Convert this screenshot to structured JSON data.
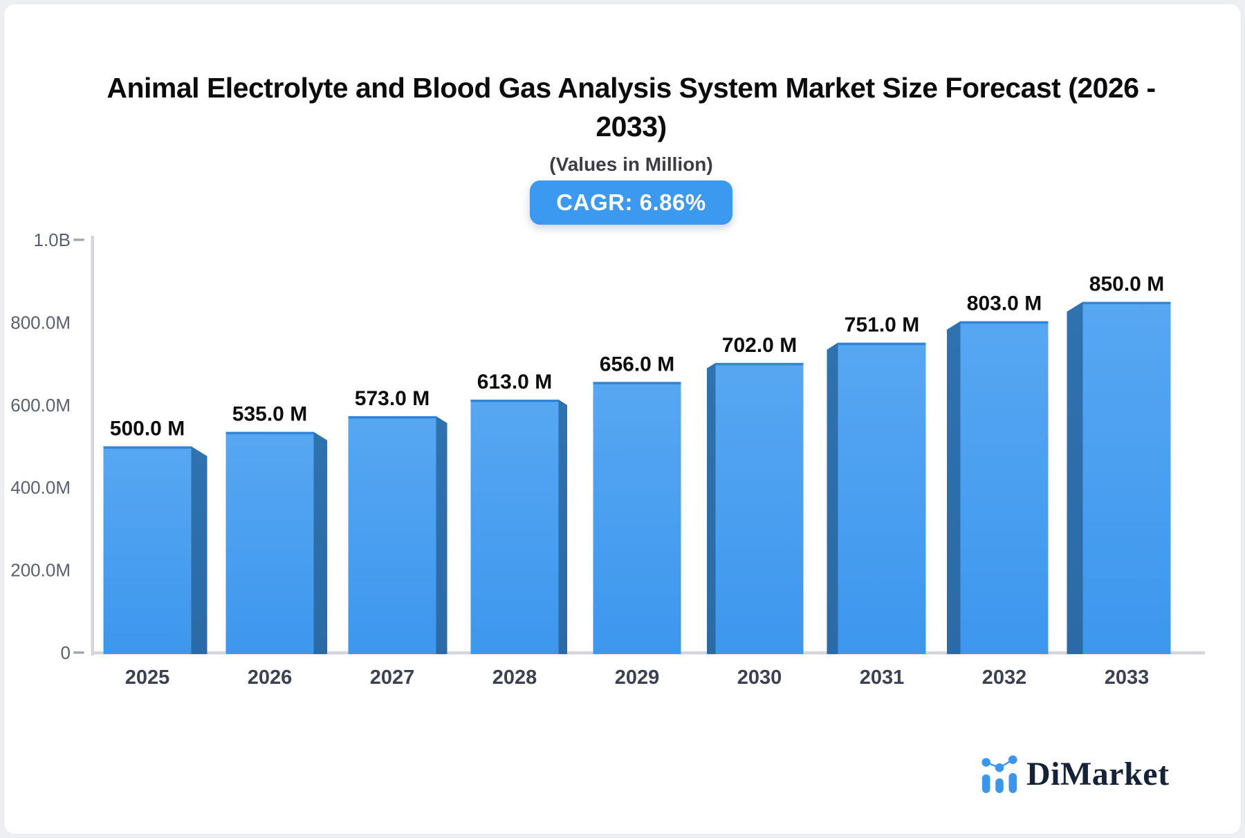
{
  "title_line1": "Animal Electrolyte and Blood Gas Analysis System Market Size Forecast (2026 -",
  "title_line2": "2033)",
  "subtitle": "(Values in Million)",
  "badge": {
    "label": "CAGR: 6.86%"
  },
  "logo": {
    "name": "DiMarket",
    "icon": "bar-chart-logo-icon"
  },
  "chart_data": {
    "type": "bar",
    "title": "Animal Electrolyte and Blood Gas Analysis System Market Size Forecast (2026 - 2033)",
    "subtitle": "(Values in Million)",
    "cagr_percent": 6.86,
    "categories": [
      "2025",
      "2026",
      "2027",
      "2028",
      "2029",
      "2030",
      "2031",
      "2032",
      "2033"
    ],
    "values": [
      500,
      535,
      573,
      613,
      656,
      702,
      751,
      803,
      850
    ],
    "value_labels": [
      "500.0 M",
      "535.0 M",
      "573.0 M",
      "613.0 M",
      "656.0 M",
      "702.0 M",
      "751.0 M",
      "803.0 M",
      "850.0 M"
    ],
    "xlabel": "",
    "ylabel": "",
    "ylim": [
      0,
      1000
    ],
    "grid": false,
    "legend": "none",
    "y_ticks": [
      {
        "label": "1.0B",
        "value": 1000,
        "has_dash": true
      },
      {
        "label": "800.0M",
        "value": 800,
        "has_dash": false
      },
      {
        "label": "600.0M",
        "value": 600,
        "has_dash": false
      },
      {
        "label": "400.0M",
        "value": 400,
        "has_dash": false
      },
      {
        "label": "200.0M",
        "value": 200,
        "has_dash": false
      },
      {
        "label": "0",
        "value": 0,
        "has_dash": true
      }
    ],
    "colors": {
      "bar_front_top": "#57a7f2",
      "bar_front_bottom": "#3d97ee",
      "bar_side": "#2e72b0",
      "bar_side_dark": "#2b6aa5",
      "bar_top_edge": "#3384d6",
      "axis_line": "#d5d6db",
      "tick_dash": "#a4aab4",
      "y_tick_text": "#596070",
      "x_tick_text": "#3a4150",
      "value_text": "#0d0d10",
      "badge_bg": "#3b9af0",
      "logo_blue": "#3b96ee",
      "logo_navy": "#152238"
    }
  }
}
